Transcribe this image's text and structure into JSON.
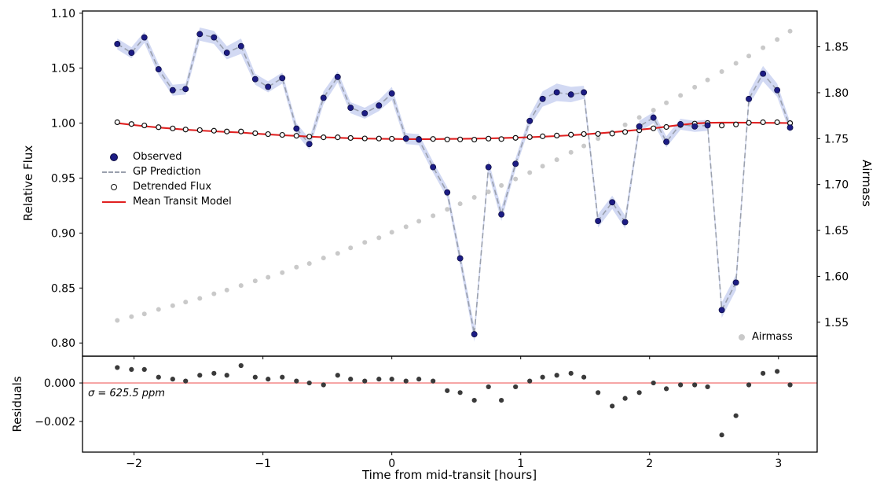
{
  "figure": {
    "ylabel_left": "Relative Flux",
    "ylabel_right": "Airmass",
    "residuals_ylabel": "Residuals",
    "xlabel": "Time from mid-transit [hours]",
    "sigma_label": "σ = 625.5 ppm",
    "airmass_label": "Airmass",
    "legend": [
      {
        "label": "Observed",
        "marker": "navy-dot"
      },
      {
        "label": "GP Prediction",
        "marker": "gray-dashed-line"
      },
      {
        "label": "Detrended Flux",
        "marker": "open-circle"
      },
      {
        "label": "Mean Transit Model",
        "marker": "red-line"
      }
    ]
  },
  "chart_data": {
    "type": "line",
    "title": "",
    "xlabel": "Time from mid-transit [hours]",
    "ylabel": "Relative Flux",
    "ylabel_right": "Airmass",
    "residuals_ylabel": "Residuals",
    "sigma_ppm": 625.5,
    "legend_position": "center left",
    "grid": false,
    "colors": {
      "observed": "#1c1c84",
      "observed_edge": "#0c0c3e",
      "gp": "#9aa0ad",
      "gp_band": "#8f9fe0",
      "model": "#e02020",
      "detrended_edge": "#111111",
      "airmass": "#c9c9c9",
      "residual": "#3a3a3a",
      "zero_line": "#f48f8f"
    },
    "axes": {
      "x": {
        "lim": [
          -2.4,
          3.3
        ],
        "ticks": [
          -2,
          -1,
          0,
          1,
          2,
          3
        ],
        "labels": [
          "−2",
          "−1",
          "0",
          "1",
          "2",
          "3"
        ]
      },
      "y_main": {
        "lim": [
          0.788,
          1.102
        ],
        "ticks": [
          0.8,
          0.85,
          0.9,
          0.95,
          1.0,
          1.05,
          1.1
        ],
        "labels": [
          "0.80",
          "0.85",
          "0.90",
          "0.95",
          "1.00",
          "1.05",
          "1.10"
        ]
      },
      "y_air": {
        "lim": [
          1.513,
          1.889
        ],
        "ticks": [
          1.55,
          1.6,
          1.65,
          1.7,
          1.75,
          1.8,
          1.85
        ],
        "labels": [
          "1.55",
          "1.60",
          "1.65",
          "1.70",
          "1.75",
          "1.80",
          "1.85"
        ]
      },
      "y_res": {
        "lim": [
          -0.00359,
          0.00139
        ],
        "ticks": [
          0.0,
          -0.002
        ],
        "labels": [
          "0.000",
          "−0.002"
        ]
      }
    },
    "x": [
      -2.13,
      -2.02,
      -1.92,
      -1.81,
      -1.7,
      -1.6,
      -1.49,
      -1.38,
      -1.28,
      -1.17,
      -1.06,
      -0.96,
      -0.85,
      -0.74,
      -0.64,
      -0.53,
      -0.42,
      -0.32,
      -0.21,
      -0.1,
      0.0,
      0.11,
      0.21,
      0.32,
      0.43,
      0.53,
      0.64,
      0.75,
      0.85,
      0.96,
      1.07,
      1.17,
      1.28,
      1.39,
      1.49,
      1.6,
      1.71,
      1.81,
      1.92,
      2.03,
      2.13,
      2.24,
      2.35,
      2.45,
      2.56,
      2.67,
      2.77,
      2.88,
      2.99,
      3.09
    ],
    "observed": [
      1.072,
      1.064,
      1.078,
      1.049,
      1.03,
      1.031,
      1.081,
      1.078,
      1.064,
      1.07,
      1.04,
      1.033,
      1.041,
      0.995,
      0.981,
      1.023,
      1.042,
      1.014,
      1.009,
      1.016,
      1.027,
      0.986,
      0.985,
      0.96,
      0.937,
      0.877,
      0.808,
      0.96,
      0.917,
      0.963,
      1.002,
      1.022,
      1.028,
      1.026,
      1.028,
      0.911,
      0.928,
      0.91,
      0.997,
      1.005,
      0.983,
      0.999,
      0.997,
      0.998,
      0.83,
      0.855,
      1.022,
      1.045,
      1.03,
      0.996
    ],
    "gp": [
      1.072,
      1.064,
      1.078,
      1.049,
      1.03,
      1.031,
      1.081,
      1.078,
      1.064,
      1.07,
      1.04,
      1.033,
      1.041,
      0.995,
      0.981,
      1.023,
      1.042,
      1.014,
      1.009,
      1.016,
      1.027,
      0.986,
      0.985,
      0.96,
      0.937,
      0.877,
      0.808,
      0.96,
      0.917,
      0.963,
      1.002,
      1.022,
      1.028,
      1.026,
      1.028,
      0.911,
      0.928,
      0.91,
      0.997,
      1.005,
      0.983,
      0.999,
      0.997,
      0.998,
      0.83,
      0.855,
      1.022,
      1.045,
      1.03,
      0.996
    ],
    "gp_band": [
      0.005,
      0.005,
      0.005,
      0.005,
      0.005,
      0.005,
      0.006,
      0.006,
      0.006,
      0.007,
      0.005,
      0.005,
      0.005,
      0.005,
      0.005,
      0.006,
      0.005,
      0.005,
      0.005,
      0.005,
      0.006,
      0.005,
      0.005,
      0.005,
      0.005,
      0.006,
      0.007,
      0.006,
      0.006,
      0.005,
      0.005,
      0.007,
      0.008,
      0.007,
      0.006,
      0.006,
      0.006,
      0.006,
      0.005,
      0.005,
      0.005,
      0.005,
      0.005,
      0.005,
      0.007,
      0.007,
      0.006,
      0.007,
      0.006,
      0.005
    ],
    "model": [
      1.0,
      0.9985,
      0.9972,
      0.996,
      0.995,
      0.9941,
      0.9933,
      0.9926,
      0.992,
      0.9915,
      0.9905,
      0.9898,
      0.989,
      0.9884,
      0.9877,
      0.9872,
      0.9867,
      0.9863,
      0.986,
      0.9858,
      0.9856,
      0.9855,
      0.9855,
      0.9855,
      0.9856,
      0.9857,
      0.9859,
      0.9861,
      0.9864,
      0.9868,
      0.9872,
      0.9877,
      0.9883,
      0.989,
      0.9898,
      0.9907,
      0.9917,
      0.9928,
      0.994,
      0.9953,
      0.9968,
      0.9984,
      0.9997,
      1.0003,
      1.0005,
      1.0005,
      1.0004,
      1.0003,
      1.0002,
      1.0001
    ],
    "detrended": [
      1.0008,
      0.9992,
      0.9979,
      0.9963,
      0.9952,
      0.9942,
      0.9937,
      0.9931,
      0.9924,
      0.9924,
      0.9908,
      0.99,
      0.9893,
      0.9885,
      0.9877,
      0.9871,
      0.9871,
      0.9865,
      0.9861,
      0.986,
      0.9858,
      0.9856,
      0.9857,
      0.9856,
      0.9852,
      0.9852,
      0.985,
      0.9859,
      0.9855,
      0.9866,
      0.9873,
      0.988,
      0.9887,
      0.9895,
      0.9901,
      0.9902,
      0.9905,
      0.992,
      0.9935,
      0.9953,
      0.9965,
      0.9983,
      0.9996,
      1.0001,
      0.9978,
      0.9988,
      1.0003,
      1.0008,
      1.0008,
      1.0
    ],
    "airmass": [
      1.552,
      1.556,
      1.559,
      1.564,
      1.568,
      1.572,
      1.576,
      1.581,
      1.585,
      1.59,
      1.595,
      1.599,
      1.604,
      1.61,
      1.614,
      1.62,
      1.625,
      1.631,
      1.637,
      1.642,
      1.648,
      1.654,
      1.66,
      1.666,
      1.673,
      1.679,
      1.686,
      1.692,
      1.699,
      1.706,
      1.713,
      1.72,
      1.727,
      1.735,
      1.742,
      1.75,
      1.757,
      1.765,
      1.773,
      1.781,
      1.789,
      1.797,
      1.806,
      1.814,
      1.823,
      1.832,
      1.84,
      1.849,
      1.858,
      1.867
    ],
    "residuals": [
      0.0008,
      0.0007,
      0.0007,
      0.0003,
      0.0002,
      0.0001,
      0.0004,
      0.0005,
      0.0004,
      0.0009,
      0.0003,
      0.0002,
      0.0003,
      0.0001,
      0.0,
      -0.0001,
      0.0004,
      0.0002,
      0.0001,
      0.0002,
      0.0002,
      0.0001,
      0.0002,
      0.0001,
      -0.0004,
      -0.0005,
      -0.0009,
      -0.0002,
      -0.0009,
      -0.0002,
      0.0001,
      0.0003,
      0.0004,
      0.0005,
      0.0003,
      -0.0005,
      -0.0012,
      -0.0008,
      -0.0005,
      0.0,
      -0.0003,
      -0.0001,
      -0.0001,
      -0.0002,
      -0.0027,
      -0.0017,
      -0.0001,
      0.0005,
      0.0006,
      -0.0001
    ]
  }
}
